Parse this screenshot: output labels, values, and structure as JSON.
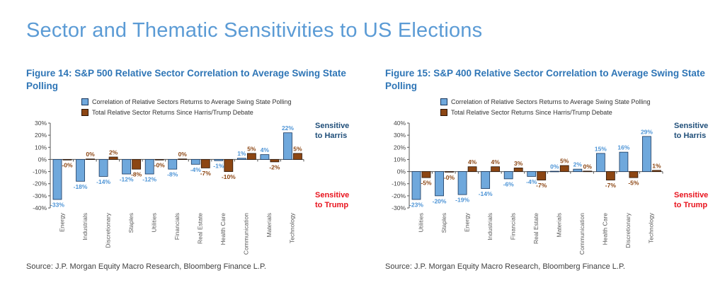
{
  "page": {
    "title": "Sector and Thematic Sensitivities to US Elections",
    "source": "Source: J.P. Morgan Equity Macro Research, Bloomberg Finance L.P."
  },
  "legend": {
    "series1": "Correlation of Relative Sectors Returns to Average Swing State Polling",
    "series2": "Total Relative Sector Returns Since Harris/Trump Debate"
  },
  "annotations": {
    "harris": "Sensitive to Harris",
    "trump": "Sensitive to Trump"
  },
  "colors": {
    "main_title_blue": "#5B9BD5",
    "figure_title_blue": "#2E75B6",
    "bar_blue": "#6FA8DC",
    "bar_blue_border": "#17365D",
    "bar_brown": "#8C4613",
    "bar_brown_border": "#2B1507",
    "blue_label": "#4D94D6",
    "brown_label": "#8C4613",
    "harris_blue": "#1F4E79",
    "trump_red": "#E8131D",
    "axis_gray": "#555555"
  },
  "chart_data": [
    {
      "type": "bar",
      "title": "Figure 14: S&P 500 Relative Sector Correlation to Average Swing State Polling",
      "xlabel": "",
      "ylabel": "",
      "grid": false,
      "legend_position": "top",
      "ylim": [
        -40,
        30
      ],
      "yticks": [
        "30%",
        "20%",
        "10%",
        "0%",
        "-10%",
        "-20%",
        "-30%",
        "-40%"
      ],
      "categories": [
        "Energy",
        "Industrials",
        "Discretionary",
        "Staples",
        "Utilities",
        "Financials",
        "Real Estate",
        "Health Care",
        "Communication",
        "Materials",
        "Technology"
      ],
      "series": [
        {
          "name": "Correlation of Relative Sectors Returns to Average Swing State Polling",
          "color": "#6FA8DC",
          "border": "#17365D",
          "label_color": "#4D94D6",
          "values": [
            -33,
            -18,
            -14,
            -12,
            -12,
            -8,
            -4,
            -1,
            1,
            4,
            22
          ],
          "labels": [
            "-33%",
            "-18%",
            "-14%",
            "-12%",
            "-12%",
            "-8%",
            "-4%",
            "-1%",
            "1%",
            "4%",
            "22%"
          ]
        },
        {
          "name": "Total Relative Sector Returns Since Harris/Trump Debate",
          "color": "#8C4613",
          "border": "#2B1507",
          "label_color": "#8C4613",
          "values": [
            -0.4,
            0.4,
            2,
            -8,
            -0.4,
            0.4,
            -7,
            -10,
            5,
            -2,
            5
          ],
          "labels": [
            "-0%",
            "0%",
            "2%",
            "-8%",
            "-0%",
            "0%",
            "-7%",
            "-10%",
            "5%",
            "-2%",
            "5%"
          ]
        }
      ]
    },
    {
      "type": "bar",
      "title": "Figure 15: S&P 400 Relative Sector Correlation to Average Swing State Polling",
      "xlabel": "",
      "ylabel": "",
      "grid": false,
      "legend_position": "top",
      "ylim": [
        -30,
        40
      ],
      "yticks": [
        "40%",
        "30%",
        "20%",
        "10%",
        "0%",
        "-10%",
        "-20%",
        "-30%"
      ],
      "categories": [
        "Utilities",
        "Staples",
        "Energy",
        "Industrials",
        "Financials",
        "Real Estate",
        "Materials",
        "Communication",
        "Health Care",
        "Discretionary",
        "Technology"
      ],
      "series": [
        {
          "name": "Correlation of Relative Sectors Returns to Average Swing State Polling",
          "color": "#6FA8DC",
          "border": "#17365D",
          "label_color": "#4D94D6",
          "values": [
            -23,
            -20,
            -19,
            -14,
            -6,
            -4,
            0.3,
            2,
            15,
            16,
            29
          ],
          "labels": [
            "-23%",
            "-20%",
            "-19%",
            "-14%",
            "-6%",
            "-4%",
            "0%",
            "2%",
            "15%",
            "16%",
            "29%"
          ]
        },
        {
          "name": "Total Relative Sector Returns Since Harris/Trump Debate",
          "color": "#8C4613",
          "border": "#2B1507",
          "label_color": "#8C4613",
          "values": [
            -5,
            -0.4,
            4,
            4,
            3,
            -7,
            5,
            0.4,
            -7,
            -5,
            1
          ],
          "labels": [
            "-5%",
            "-0%",
            "4%",
            "4%",
            "3%",
            "-7%",
            "5%",
            "0%",
            "-7%",
            "-5%",
            "1%"
          ]
        }
      ]
    }
  ]
}
